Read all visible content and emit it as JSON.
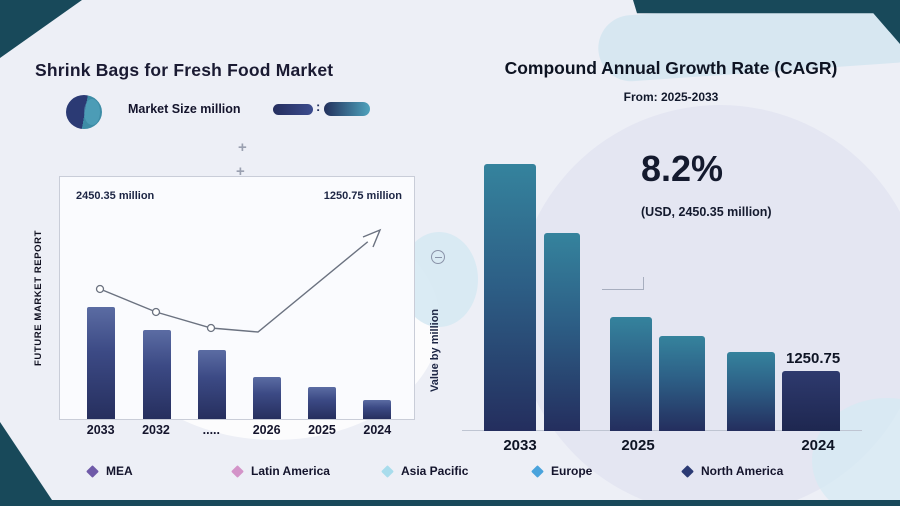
{
  "page": {
    "background": "#edeff6",
    "accent_dark": "#18495a",
    "accent_teal": "#35839d",
    "accent_navy": "#262f5e"
  },
  "decorations": {
    "plus": "+",
    "toggle_separator": ":"
  },
  "chart_data": [
    {
      "id": "market-size",
      "type": "bar",
      "title": "Shrink Bags for Fresh Food Market",
      "legend_label": "Market Size million",
      "start_value_label": "2450.35 million",
      "end_value_label": "1250.75 million",
      "ylabel": "FUTURE MARKET REPORT",
      "categories": [
        "2033",
        "2032",
        ".....",
        "2026",
        "2025",
        "2024"
      ],
      "values": [
        2450.35,
        2150,
        1900,
        1550,
        1420,
        1250.75
      ],
      "ylim": [
        1000,
        2450.35
      ],
      "annotations": "descending bars from 2033 to 2024 with trend line and upward arrow",
      "legend_position": "top-left",
      "grid": false
    },
    {
      "id": "cagr",
      "type": "bar",
      "title": "Compound Annual Growth Rate (CAGR)",
      "subtitle": "From: 2025-2033",
      "cagr_value": "8.2%",
      "cagr_note": "(USD, 2450.35 million)",
      "ylabel": "Value by million",
      "categories": [
        "2033",
        "2025",
        "2024"
      ],
      "series": [
        {
          "name": "primary",
          "values": [
            2450.35,
            1560,
            1360
          ]
        },
        {
          "name": "secondary",
          "values": [
            2050,
            1450,
            1250.75
          ]
        }
      ],
      "ylim": [
        900,
        2450.35
      ],
      "annotation": "1250.75",
      "grid": false
    }
  ],
  "legend": {
    "items": [
      {
        "label": "MEA",
        "color": "#6f5aa8"
      },
      {
        "label": "Latin America",
        "color": "#d393c8"
      },
      {
        "label": "Asia Pacific",
        "color": "#a8dcec"
      },
      {
        "label": "Europe",
        "color": "#4aa3dc"
      },
      {
        "label": "North America",
        "color": "#2b3a74"
      }
    ]
  }
}
